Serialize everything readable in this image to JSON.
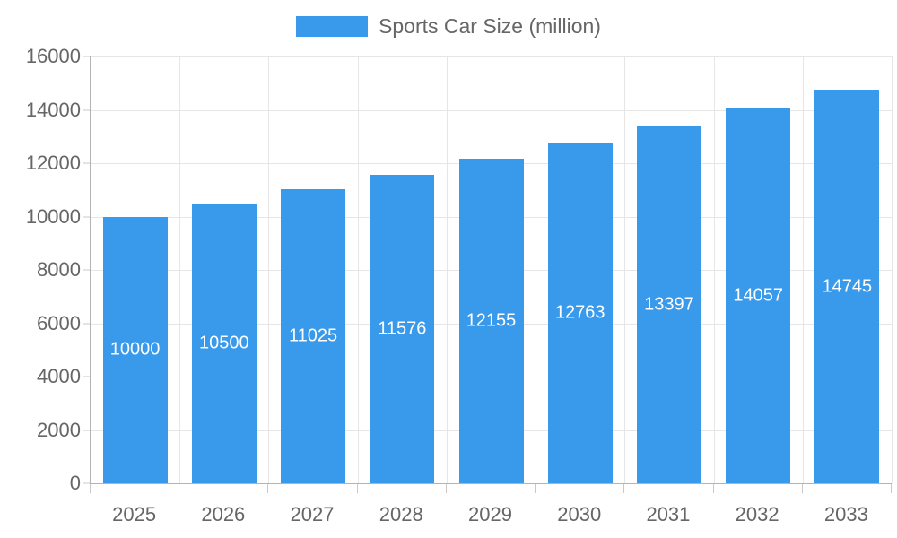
{
  "legend": {
    "label": "Sports Car Size (million)"
  },
  "chart_data": {
    "type": "bar",
    "title": "",
    "categories": [
      "2025",
      "2026",
      "2027",
      "2028",
      "2029",
      "2030",
      "2031",
      "2032",
      "2033"
    ],
    "series": [
      {
        "name": "Sports Car Size (million)",
        "values": [
          10000,
          10500,
          11025,
          11576,
          12155,
          12763,
          13397,
          14057,
          14745
        ]
      }
    ],
    "xlabel": "",
    "ylabel": "",
    "ylim": [
      0,
      16000
    ],
    "ytick_step": 2000,
    "grid": true,
    "legend_position": "top",
    "bar_label_position": "center",
    "colors": {
      "bar": "#3999eb",
      "bar_value_text": "#ffffff",
      "axis_line": "#b3b3b3",
      "gridline": "#e6e6e6",
      "tick_mark": "#c9c9c9",
      "axis_text": "#666666",
      "legend_text": "#666666"
    }
  }
}
